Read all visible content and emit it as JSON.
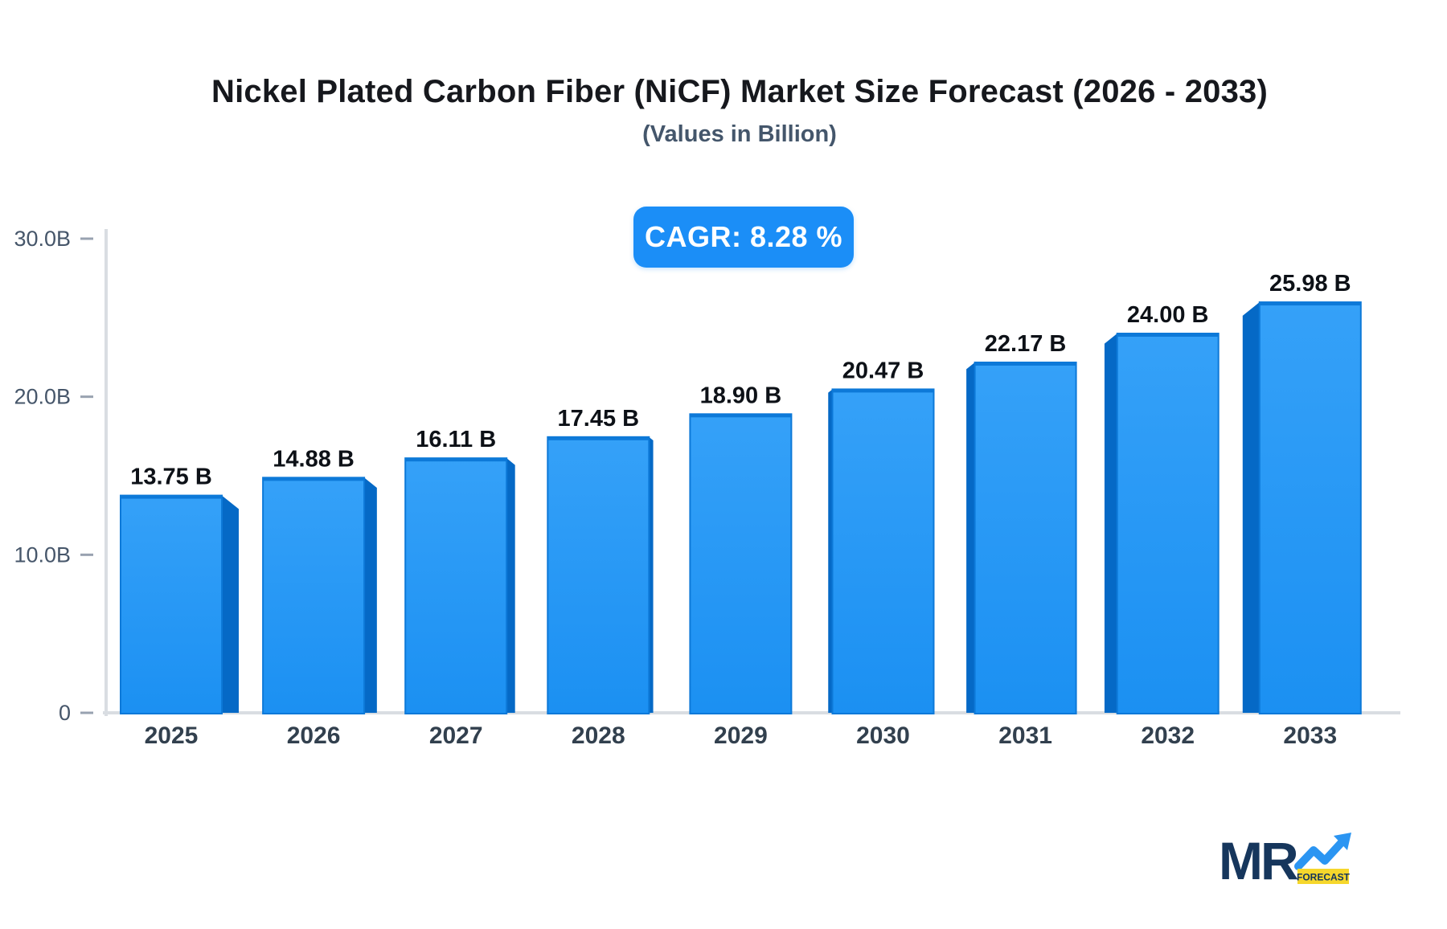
{
  "header": {
    "title": "Nickel Plated Carbon Fiber (NiCF) Market Size Forecast (2026 - 2033)",
    "subtitle": "(Values in Billion)",
    "cagr_badge": "CAGR: 8.28 %"
  },
  "chart_data": {
    "type": "bar",
    "title": "Nickel Plated Carbon Fiber (NiCF) Market Size Forecast (2026 - 2033)",
    "subtitle": "(Values in Billion)",
    "categories": [
      "2025",
      "2026",
      "2027",
      "2028",
      "2029",
      "2030",
      "2031",
      "2032",
      "2033"
    ],
    "values": [
      13.75,
      14.88,
      16.11,
      17.45,
      18.9,
      20.47,
      22.17,
      24.0,
      25.98
    ],
    "bar_labels": [
      "13.75 B",
      "14.88 B",
      "16.11 B",
      "17.45 B",
      "18.90 B",
      "20.47 B",
      "22.17 B",
      "24.00 B",
      "25.98 B"
    ],
    "ytick_values": [
      0,
      10,
      20,
      30
    ],
    "ytick_labels": [
      "0",
      "10.0B",
      "20.0B",
      "30.0B"
    ],
    "ylim": [
      0,
      30
    ],
    "grid": false,
    "legend": false,
    "xlabel": "",
    "ylabel": "",
    "colors": {
      "bar_top": "#35a1f8",
      "bar_bottom": "#1b90f2",
      "bar_edge": "#0d79d8",
      "bar_side": "#0569c6",
      "axis_line": "#d9dde2",
      "tick_dash": "#98a2b0",
      "tick_text": "#46566a",
      "value_text": "#0d1117",
      "year_text": "#32404e",
      "badge_bg": "#1b8ef7"
    }
  },
  "logo": {
    "mr": "MR",
    "forecast": "FORECAST"
  }
}
